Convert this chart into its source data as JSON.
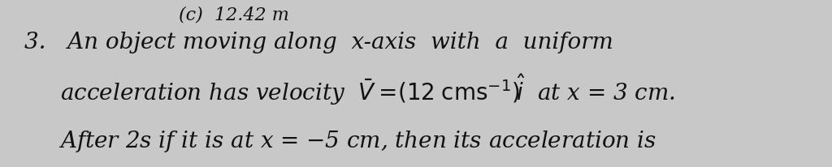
{
  "background_color": "#c8c8c8",
  "top_text": "(c)  12.42 m",
  "line1": "3.   An object moving along  x-axis  with  a  uniform",
  "line3": "     After 2s if it is at x = −5 cm, then its acceleration is",
  "font_size_main": 20,
  "font_size_top": 16,
  "text_color": "#111111",
  "fig_width": 10.24,
  "fig_height": 2.07,
  "dpi": 100
}
